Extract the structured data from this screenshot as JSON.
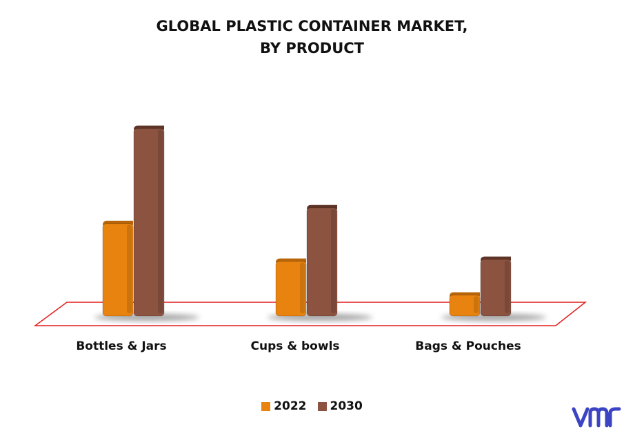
{
  "title_line1": "GLOBAL PLASTIC CONTAINER MARKET,",
  "title_line2": "BY PRODUCT",
  "colors": {
    "series_2022": "#e8830f",
    "series_2022_top": "#b8650a",
    "series_2030": "#8b5340",
    "series_2030_top": "#5e3426",
    "floor_outline": "#e21b1b",
    "logo": "#3b45c4"
  },
  "logo_icon": "vmr-logo",
  "chart_data": {
    "type": "bar",
    "categories": [
      "Bottles & Jars",
      "Cups & bowls",
      "Bags & Pouches"
    ],
    "series": [
      {
        "name": "2022",
        "values": [
          48,
          29,
          12
        ]
      },
      {
        "name": "2030",
        "values": [
          96,
          56,
          30
        ]
      }
    ],
    "ylim": [
      0,
      100
    ],
    "grid": false,
    "legend_position": "bottom-center"
  }
}
